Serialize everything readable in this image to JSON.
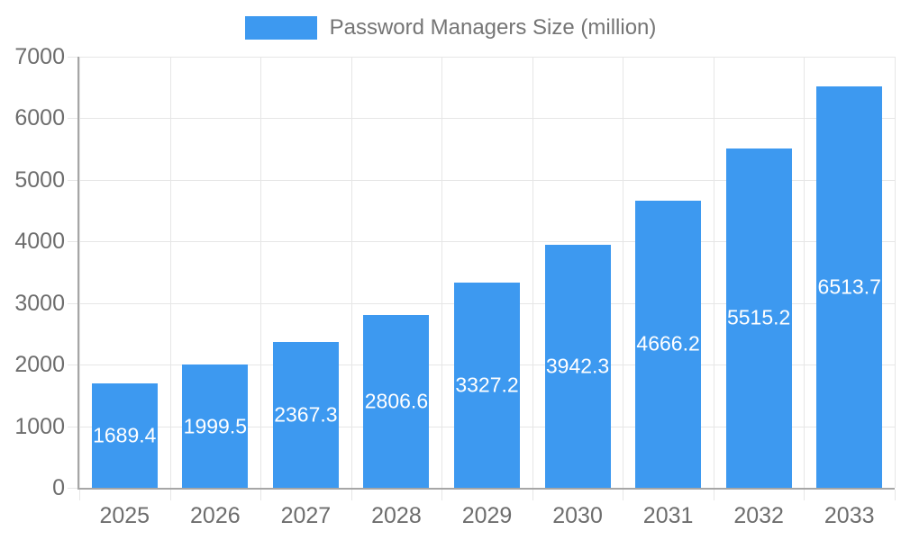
{
  "legend": {
    "label": "Password Managers Size (million)"
  },
  "chart_data": {
    "type": "bar",
    "title": "Password Managers Size (million)",
    "series_name": "Password Managers Size (million)",
    "categories": [
      "2025",
      "2026",
      "2027",
      "2028",
      "2029",
      "2030",
      "2031",
      "2032",
      "2033"
    ],
    "values": [
      1689.4,
      1999.5,
      2367.3,
      2806.6,
      3327.2,
      3942.3,
      4666.2,
      5515.2,
      6513.7
    ],
    "value_labels": [
      "1689.4",
      "1999.5",
      "2367.3",
      "2806.6",
      "3327.2",
      "3942.3",
      "4666.2",
      "5515.2",
      "6513.7"
    ],
    "xlabel": "",
    "ylabel": "",
    "ylim": [
      0,
      7000
    ],
    "ytick_step": 1000,
    "ytick_labels": [
      "0",
      "1000",
      "2000",
      "3000",
      "4000",
      "5000",
      "6000",
      "7000"
    ],
    "grid": true,
    "legend_position": "top",
    "bar_color": "#3d99f0",
    "value_label_color": "#ffffff",
    "axis_text_color": "#6d6d6d",
    "legend_text_color": "#757575",
    "gridline_color": "#e6e6e6",
    "axis_line_color": "#a6a6a6"
  }
}
